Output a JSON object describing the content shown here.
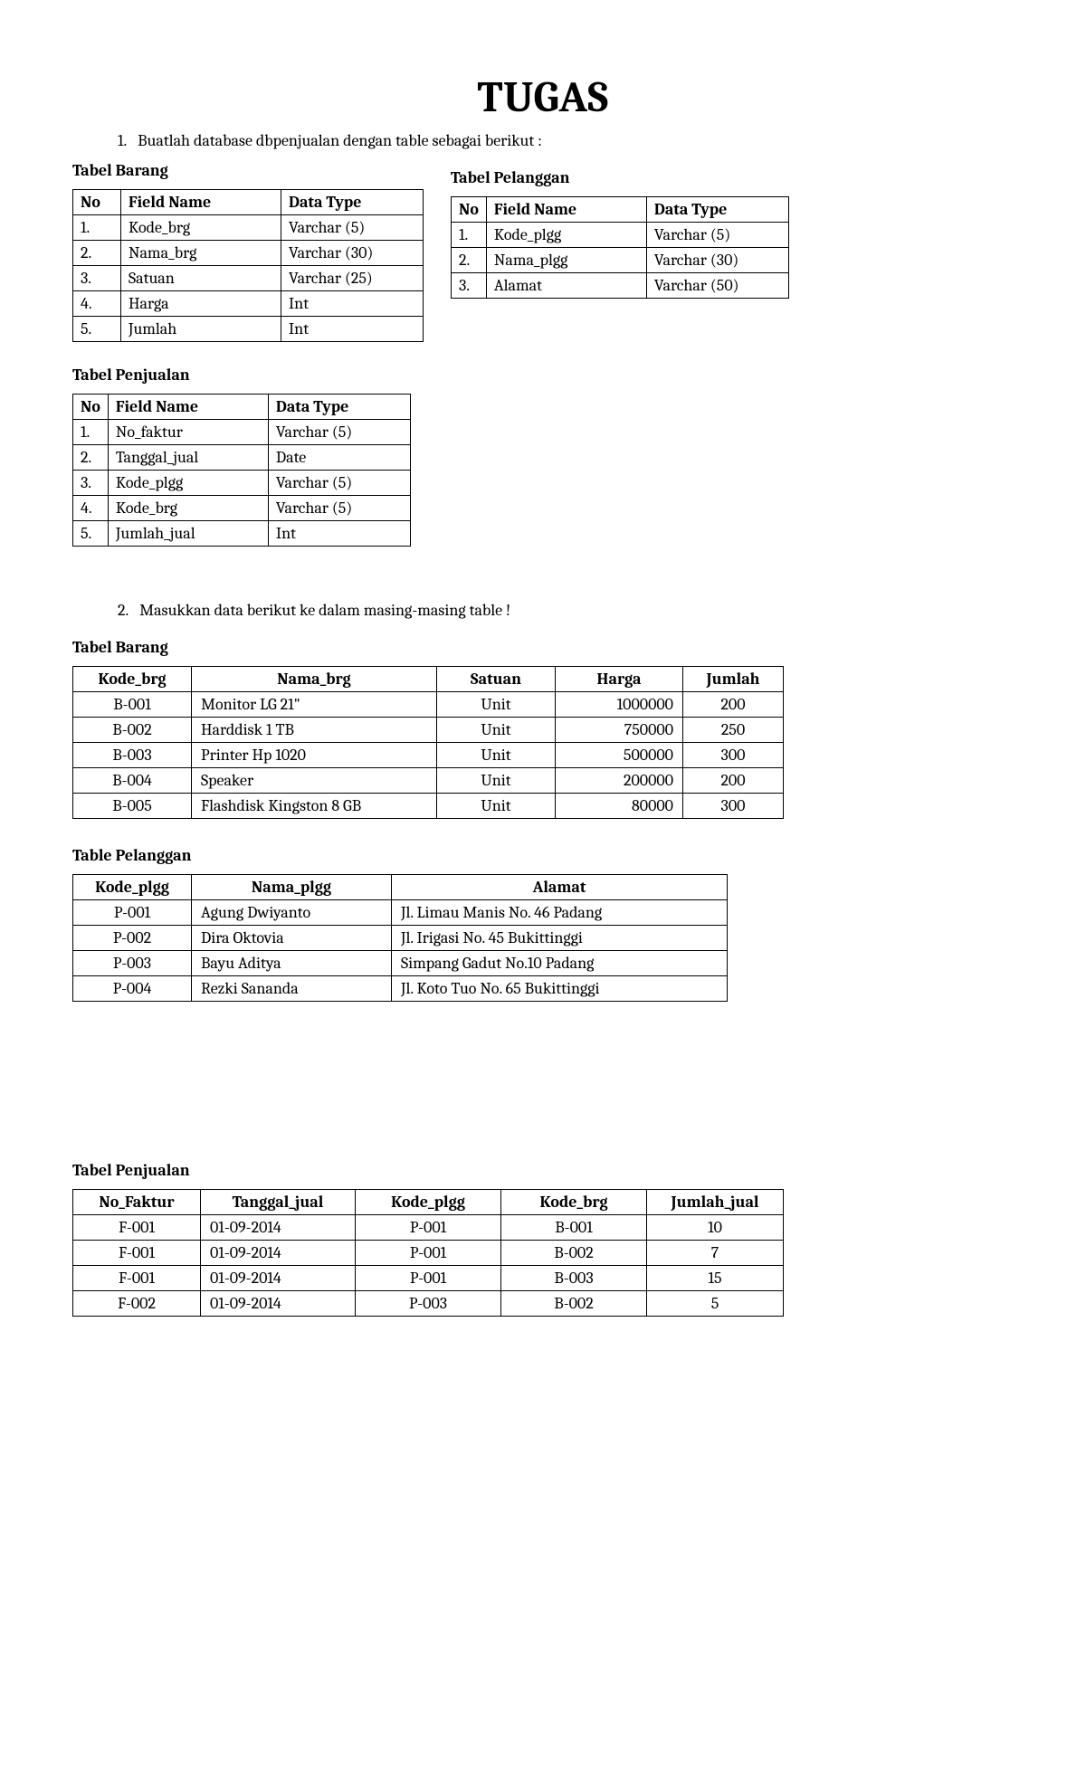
{
  "title": "TUGAS",
  "instruction1_num": "1.",
  "instruction1_text": "Buatlah database dbpenjualan dengan table sebagai berikut :",
  "instruction2_num": "2.",
  "instruction2_text": "Masukkan data berikut ke dalam masing-masing table !",
  "schema_headers": {
    "no": "No",
    "field": "Field Name",
    "type": "Data Type"
  },
  "tabel_barang_title": "Tabel Barang",
  "tabel_barang_schema": [
    {
      "no": "1.",
      "field": "Kode_brg",
      "type": "Varchar (5)"
    },
    {
      "no": "2.",
      "field": "Nama_brg",
      "type": "Varchar (30)"
    },
    {
      "no": "3.",
      "field": "Satuan",
      "type": "Varchar (25)"
    },
    {
      "no": "4.",
      "field": "Harga",
      "type": "Int"
    },
    {
      "no": "5.",
      "field": "Jumlah",
      "type": "Int"
    }
  ],
  "tabel_pelanggan_title": "Tabel Pelanggan",
  "tabel_pelanggan_schema": [
    {
      "no": "1.",
      "field": "Kode_plgg",
      "type": "Varchar (5)"
    },
    {
      "no": "2.",
      "field": "Nama_plgg",
      "type": "Varchar (30)"
    },
    {
      "no": "3.",
      "field": "Alamat",
      "type": "Varchar (50)"
    }
  ],
  "tabel_penjualan_title": "Tabel Penjualan",
  "tabel_penjualan_schema": [
    {
      "no": "1.",
      "field": "No_faktur",
      "type": "Varchar (5)"
    },
    {
      "no": "2.",
      "field": "Tanggal_jual",
      "type": "Date"
    },
    {
      "no": "3.",
      "field": "Kode_plgg",
      "type": "Varchar (5)"
    },
    {
      "no": "4.",
      "field": "Kode_brg",
      "type": "Varchar (5)"
    },
    {
      "no": "5.",
      "field": "Jumlah_jual",
      "type": "Int"
    }
  ],
  "data_barang_title": "Tabel Barang",
  "data_barang_headers": [
    "Kode_brg",
    "Nama_brg",
    "Satuan",
    "Harga",
    "Jumlah"
  ],
  "data_barang_rows": [
    [
      "B-001",
      "Monitor LG 21\"",
      "Unit",
      "1000000",
      "200"
    ],
    [
      "B-002",
      "Harddisk 1 TB",
      "Unit",
      "750000",
      "250"
    ],
    [
      "B-003",
      "Printer Hp 1020",
      "Unit",
      "500000",
      "300"
    ],
    [
      "B-004",
      "Speaker",
      "Unit",
      "200000",
      "200"
    ],
    [
      "B-005",
      "Flashdisk Kingston 8 GB",
      "Unit",
      "80000",
      "300"
    ]
  ],
  "data_pelanggan_title": "Table Pelanggan",
  "data_pelanggan_headers": [
    "Kode_plgg",
    "Nama_plgg",
    "Alamat"
  ],
  "data_pelanggan_rows": [
    [
      "P-001",
      "Agung Dwiyanto",
      "Jl. Limau Manis No. 46 Padang"
    ],
    [
      "P-002",
      "Dira Oktovia",
      "Jl. Irigasi No. 45 Bukittinggi"
    ],
    [
      "P-003",
      "Bayu Aditya",
      "Simpang Gadut No.10 Padang"
    ],
    [
      "P-004",
      "Rezki Sananda",
      "Jl. Koto Tuo No. 65 Bukittinggi"
    ]
  ],
  "data_penjualan_title": "Tabel Penjualan",
  "data_penjualan_headers": [
    "No_Faktur",
    "Tanggal_jual",
    "Kode_plgg",
    "Kode_brg",
    "Jumlah_jual"
  ],
  "data_penjualan_rows": [
    [
      "F-001",
      "01-09-2014",
      "P-001",
      "B-001",
      "10"
    ],
    [
      "F-001",
      "01-09-2014",
      "P-001",
      "B-002",
      "7"
    ],
    [
      "F-001",
      "01-09-2014",
      "P-001",
      "B-003",
      "15"
    ],
    [
      "F-002",
      "01-09-2014",
      "P-003",
      "B-002",
      "5"
    ]
  ],
  "col_widths": {
    "schema_no": 36,
    "schema_field": 160,
    "schema_type": 140,
    "barang_kode": 110,
    "barang_nama": 250,
    "barang_satuan": 110,
    "barang_harga": 120,
    "barang_jumlah": 90,
    "plgg_kode": 110,
    "plgg_nama": 200,
    "plgg_alamat": 350,
    "penj_faktur": 120,
    "penj_tgl": 150,
    "penj_plgg": 140,
    "penj_brg": 140,
    "penj_jual": 130
  }
}
